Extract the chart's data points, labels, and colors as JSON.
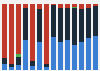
{
  "n_bars": 14,
  "segments_bottom_to_top": {
    "blue": [
      10,
      5,
      8,
      45,
      6,
      42,
      5,
      50,
      42,
      45,
      38,
      42,
      48,
      52
    ],
    "dark": [
      8,
      4,
      12,
      48,
      8,
      50,
      5,
      48,
      52,
      48,
      55,
      50,
      45,
      44
    ],
    "green": [
      0,
      0,
      5,
      0,
      0,
      0,
      0,
      0,
      0,
      0,
      2,
      0,
      0,
      0
    ],
    "red": [
      82,
      91,
      75,
      7,
      86,
      8,
      90,
      2,
      6,
      7,
      5,
      8,
      7,
      4
    ]
  },
  "colors": {
    "blue": "#3b7fd4",
    "dark": "#1c2b3a",
    "green": "#4caf50",
    "red": "#c0392b"
  },
  "background": "#f2f2f2",
  "bar_width": 0.72,
  "ylim": [
    0,
    100
  ]
}
